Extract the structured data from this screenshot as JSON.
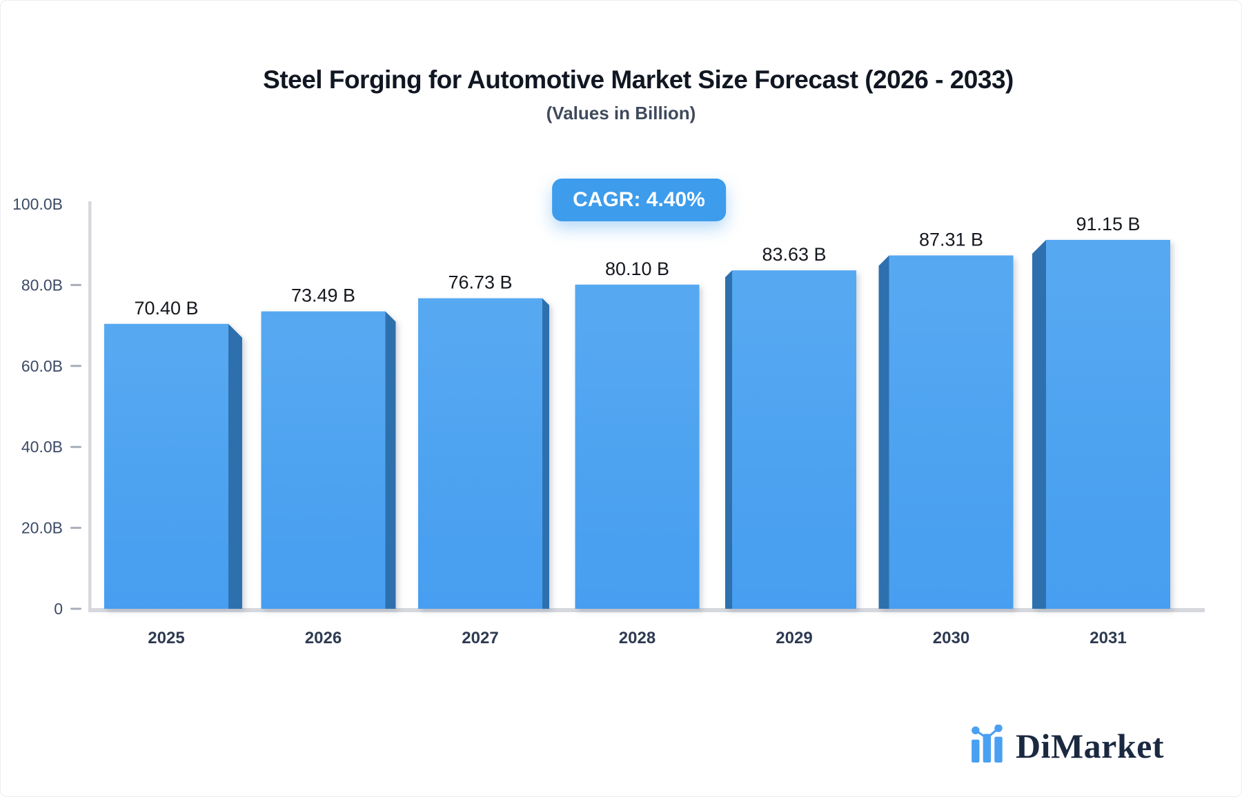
{
  "header": {
    "title": "Steel Forging for Automotive Market Size Forecast (2026 - 2033)",
    "subtitle": "(Values in Billion)"
  },
  "badge": {
    "label": "CAGR: 4.40%",
    "bg_color": "#3d9cec",
    "text_color": "#ffffff"
  },
  "chart_data": {
    "type": "bar",
    "title": "Steel Forging for Automotive Market Size Forecast (2026 - 2033)",
    "subtitle": "(Values in Billion)",
    "cagr": "4.40%",
    "categories": [
      "2025",
      "2026",
      "2027",
      "2028",
      "2029",
      "2030",
      "2031"
    ],
    "values": [
      70.4,
      73.49,
      76.73,
      80.1,
      83.63,
      87.31,
      91.15
    ],
    "value_labels": [
      "70.40 B",
      "73.49 B",
      "76.73 B",
      "80.10 B",
      "83.63 B",
      "87.31 B",
      "91.15 B"
    ],
    "xlabel": "",
    "ylabel": "",
    "ylim": [
      0,
      100
    ],
    "yticks": [
      {
        "value": 0,
        "label": "0",
        "dash": true
      },
      {
        "value": 20,
        "label": "20.0B",
        "dash": true
      },
      {
        "value": 40,
        "label": "40.0B",
        "dash": true
      },
      {
        "value": 60,
        "label": "60.0B",
        "dash": true
      },
      {
        "value": 80,
        "label": "80.0B",
        "dash": true
      },
      {
        "value": 100,
        "label": "100.0B",
        "dash": false
      }
    ],
    "grid": false,
    "legend": false,
    "bar_style": "3d-extruded",
    "colors": {
      "bar_face_top": "#57a9f1",
      "bar_face_bottom": "#479ef0",
      "bar_side": "#2d70ae",
      "axis_line": "#d6d8de",
      "tick_dash": "#a7aeb9",
      "ytick_text": "#3b4a66",
      "xtick_text": "#2e3a52",
      "value_text": "#15181e"
    }
  },
  "footer": {
    "brand_name": "DiMarket",
    "brand_color": "#1b2940",
    "icon": "bar-chart-logo-icon",
    "icon_color": "#4aa0f2"
  }
}
